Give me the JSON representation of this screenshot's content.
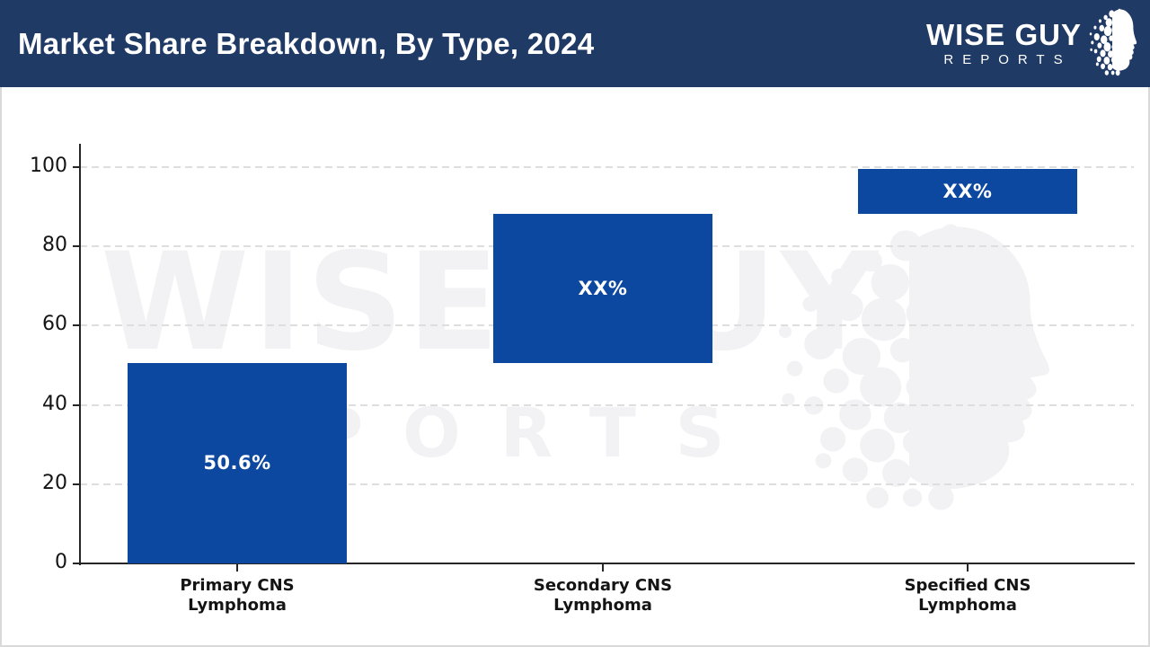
{
  "header": {
    "title": "Market Share Breakdown, By Type, 2024",
    "bg_color": "#203a66",
    "logo": {
      "line1": "WISE GUY",
      "line2": "REPORTS",
      "icon": "head-profile-dots-icon",
      "color": "#ffffff"
    }
  },
  "watermark": {
    "line1": "WISE GUY",
    "line2": "REPORTS",
    "icon": "head-profile-dots-icon",
    "color": "#f2f2f4"
  },
  "frame_border_color": "#d9d9d9",
  "chart_data": {
    "type": "bar",
    "variant": "floating-waterfall",
    "title": "Market Share Breakdown, By Type, 2024",
    "xlabel": "",
    "ylabel": "",
    "categories": [
      "Primary CNS Lymphoma",
      "Secondary CNS Lymphoma",
      "Specified CNS Lymphoma"
    ],
    "segments": [
      {
        "category": "Primary CNS Lymphoma",
        "start": 0,
        "end": 50.6,
        "label": "50.6%"
      },
      {
        "category": "Secondary CNS Lymphoma",
        "start": 50.6,
        "end": 88.2,
        "label": "XX%"
      },
      {
        "category": "Specified CNS Lymphoma",
        "start": 88.2,
        "end": 99.6,
        "label": "XX%"
      }
    ],
    "yticks": [
      0,
      20,
      40,
      60,
      80,
      100
    ],
    "ylim": [
      0,
      106
    ],
    "bar_color": "#0c47a0",
    "bar_label_color": "#ffffff",
    "axis_color": "#262626",
    "grid": {
      "show": true,
      "style": "dashed",
      "color": "#dedede",
      "axis": "y"
    },
    "legend": null
  }
}
